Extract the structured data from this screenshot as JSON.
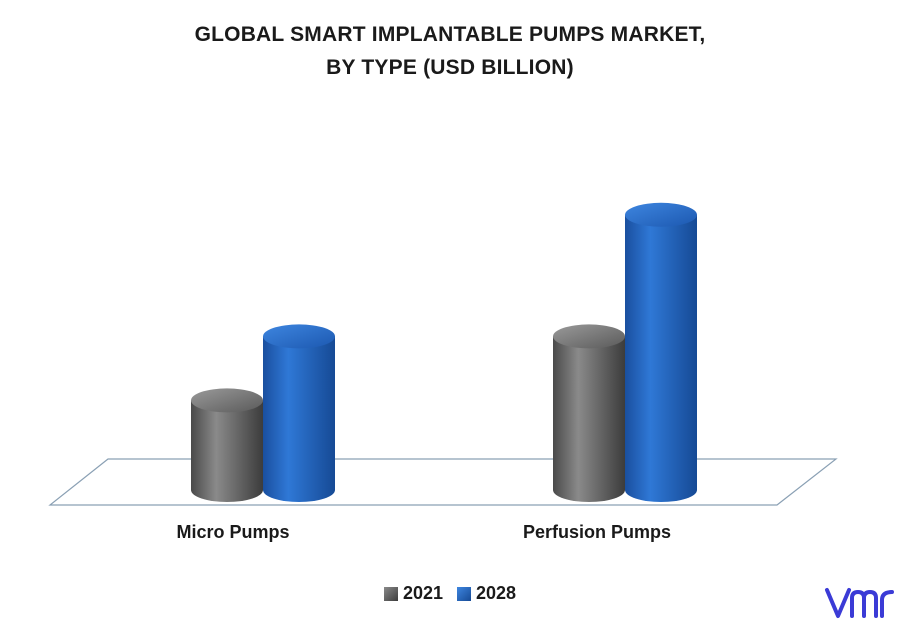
{
  "chart_data": {
    "type": "bar",
    "title_line1": "GLOBAL SMART IMPLANTABLE PUMPS MARKET,",
    "title_line2": "BY TYPE (USD BILLION)",
    "categories": [
      "Micro Pumps",
      "Perfusion Pumps"
    ],
    "series": [
      {
        "name": "2021",
        "values": [
          1.4,
          2.4
        ],
        "color": "#6b6b6b"
      },
      {
        "name": "2028",
        "values": [
          2.4,
          4.3
        ],
        "color": "#1f5fbf"
      }
    ],
    "ylim": [
      0,
      5
    ],
    "grid": false,
    "legend_position": "bottom",
    "style": "3d-cylinder"
  },
  "logo": {
    "icon": "vmr-logo-icon",
    "color": "#3b3bd6"
  }
}
